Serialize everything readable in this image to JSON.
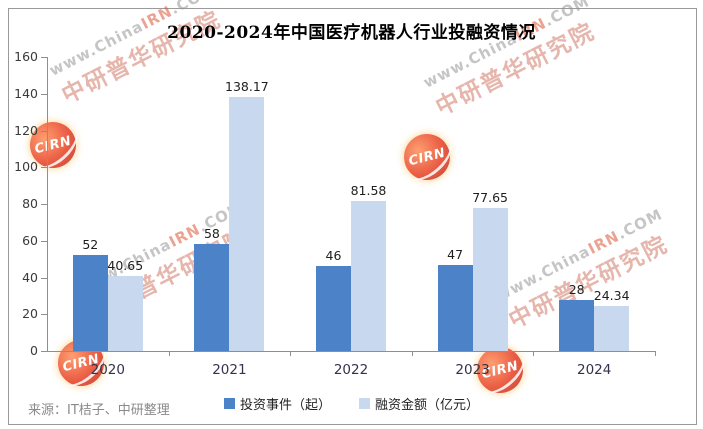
{
  "chart": {
    "title": "2020-2024年中国医疗机器人行业投融资情况",
    "source": "来源：IT桔子、中研整理"
  },
  "chart_data": {
    "type": "bar",
    "title": "2020-2024年中国医疗机器人行业投融资情况",
    "categories": [
      "2020",
      "2021",
      "2022",
      "2023",
      "2024"
    ],
    "series": [
      {
        "name": "投资事件（起）",
        "color": "#4C82C8",
        "values": [
          52,
          58,
          46,
          47,
          28
        ]
      },
      {
        "name": "融资金额（亿元）",
        "color": "#C8D8EE",
        "values": [
          40.65,
          138.17,
          81.58,
          77.65,
          24.34
        ]
      }
    ],
    "ylim": [
      0,
      160
    ],
    "yticks": [
      0,
      20,
      40,
      60,
      80,
      100,
      120,
      140,
      160
    ],
    "grid": false,
    "legend_position": "bottom",
    "value_labels": true,
    "source_note": "来源：IT桔子、中研整理"
  },
  "watermark": {
    "line1_prefix": "www.China",
    "line1_mid": "IRN",
    "line1_suffix": ".COM",
    "line2": "中研普华研究院",
    "logo_text": "CIRN"
  },
  "colors": {
    "bar_dark": "#4C82C8",
    "bar_light": "#C8D8EE",
    "axis": "#8F8F8F",
    "title_text": "#000000",
    "source_text": "#8A8A8A",
    "watermark_red": "#E63A1C"
  }
}
